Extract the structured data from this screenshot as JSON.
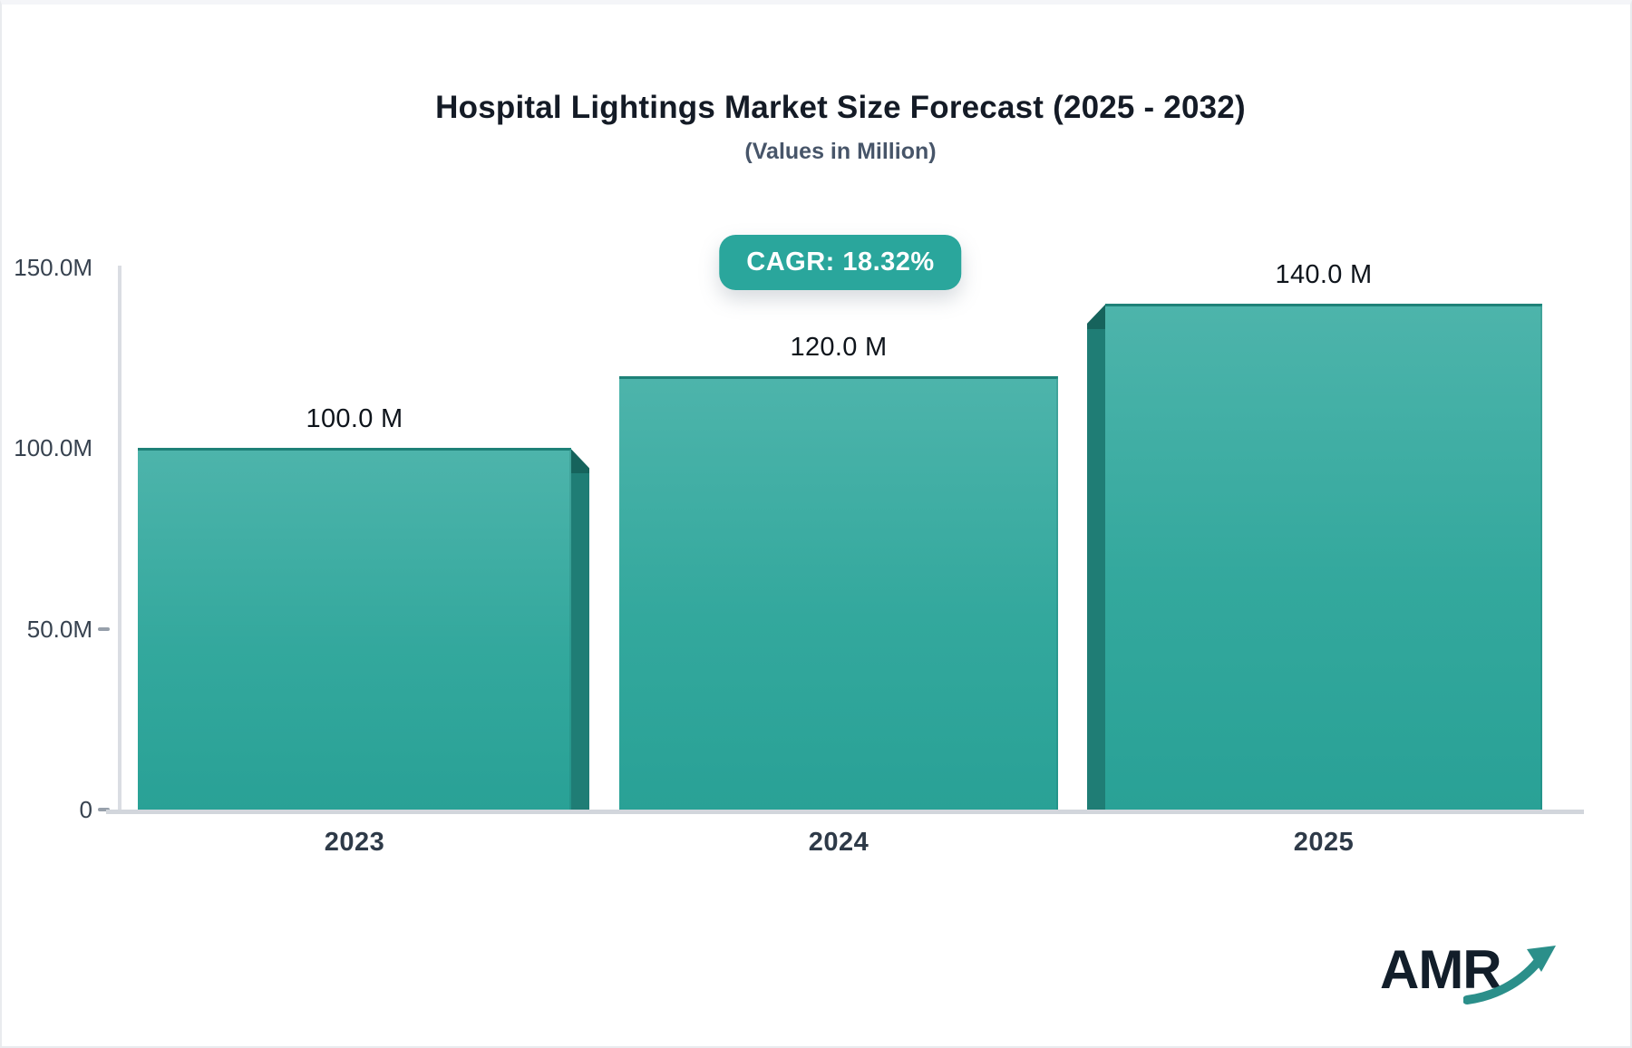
{
  "header": {
    "title": "Hospital Lightings Market Size Forecast (2025 - 2032)",
    "subtitle": "(Values in Million)"
  },
  "badge": {
    "label": "CAGR: 18.32%",
    "bg_color": "#2aa69c",
    "text_color": "#ffffff"
  },
  "logo": {
    "text": "AMR",
    "text_color": "#121e2a",
    "arrow_color": "#2b8f8a"
  },
  "chart_data": {
    "type": "bar",
    "title": "Hospital Lightings Market Size Forecast (2025 - 2032)",
    "subtitle": "(Values in Million)",
    "unit": "Million",
    "categories": [
      "2023",
      "2024",
      "2025"
    ],
    "values": [
      100,
      120,
      140
    ],
    "value_labels": [
      "100.0 M",
      "120.0 M",
      "140.0 M"
    ],
    "ylim": [
      0,
      150
    ],
    "yticks": [
      {
        "value": 150,
        "label": "150.0M",
        "dash": false
      },
      {
        "value": 100,
        "label": "100.0M",
        "dash": false
      },
      {
        "value": 50,
        "label": "50.0M",
        "dash": true
      },
      {
        "value": 0,
        "label": "0",
        "dash": true
      }
    ],
    "grid": false,
    "legend": false,
    "annotations": [
      {
        "text": "CAGR: 18.32%",
        "position": "top-center"
      }
    ],
    "bar_colors": {
      "face_top": "#4db4ab",
      "face_bottom": "#29a196",
      "side_face": "#1f7d75"
    },
    "bar_3d_sides": [
      "right",
      "none",
      "left"
    ]
  }
}
